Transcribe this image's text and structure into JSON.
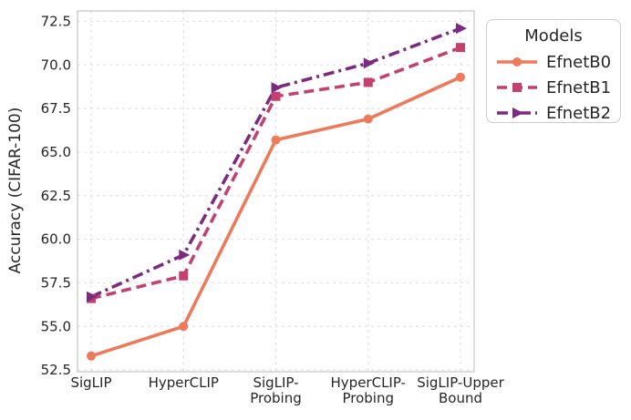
{
  "chart_data": {
    "type": "line",
    "title": "",
    "xlabel": "",
    "ylabel": "Accuracy (CIFAR-100)",
    "categories": [
      "SigLIP",
      "HyperCLIP",
      "SigLIP-\nProbing",
      "HyperCLIP-\nProbing",
      "SigLIP-Upper\nBound"
    ],
    "yticks": [
      52.5,
      55.0,
      57.5,
      60.0,
      62.5,
      65.0,
      67.5,
      70.0,
      72.5
    ],
    "ylim": [
      52.4,
      73.1
    ],
    "grid": true,
    "grid_style": "dashed-light-gray",
    "legend": {
      "title": "Models",
      "position": "upper-right-outside"
    },
    "series": [
      {
        "name": "EfnetB0",
        "color": "#ec7a5b",
        "line_style": "solid",
        "marker": "circle",
        "values": [
          53.3,
          55.0,
          65.7,
          66.9,
          69.3
        ]
      },
      {
        "name": "EfnetB1",
        "color": "#c4416d",
        "line_style": "dashed",
        "marker": "square",
        "values": [
          56.6,
          57.9,
          68.2,
          69.0,
          71.0
        ]
      },
      {
        "name": "EfnetB2",
        "color": "#7b2c81",
        "line_style": "dashdot",
        "marker": "triangle",
        "values": [
          56.7,
          59.1,
          68.7,
          70.1,
          72.1
        ]
      }
    ],
    "colors": {
      "grid": "#e2e2e2",
      "spine": "#cccccc",
      "text": "#262626",
      "background": "#ffffff"
    }
  }
}
